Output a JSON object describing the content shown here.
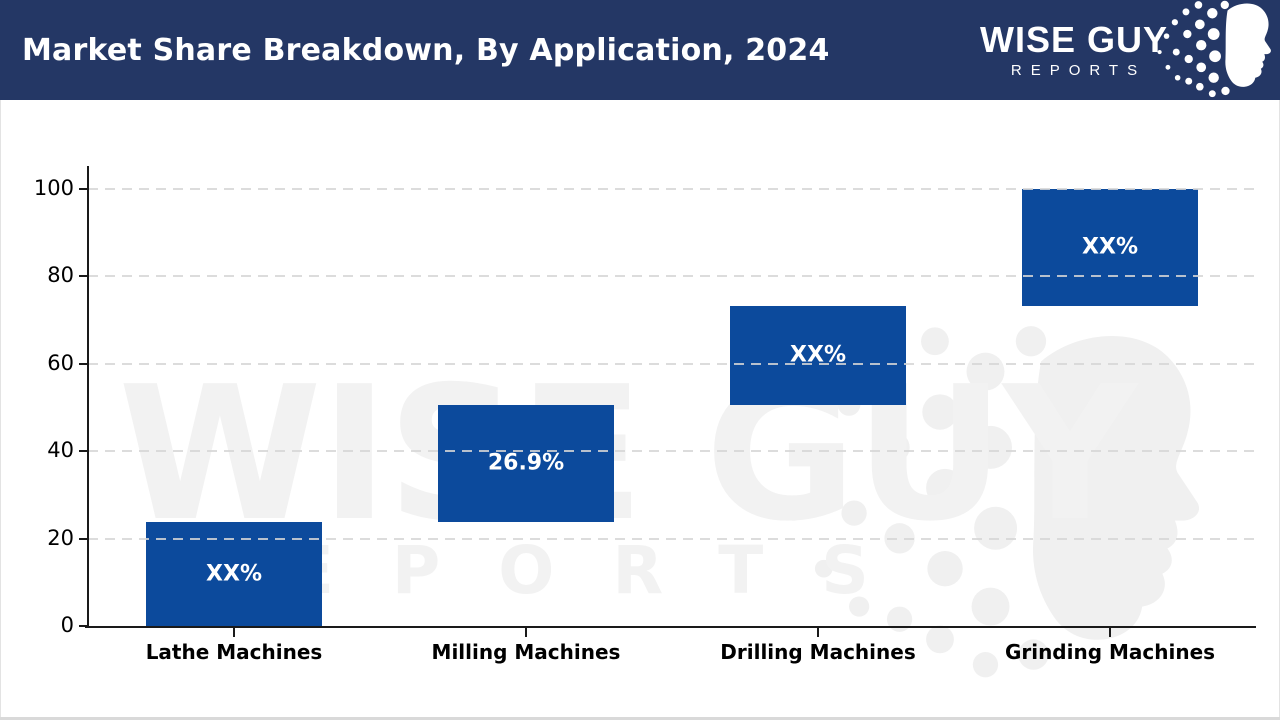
{
  "header": {
    "title": "Market Share Breakdown, By Application, 2024",
    "brand": {
      "line1": "WISE GUY",
      "line2": "REPORTS"
    }
  },
  "watermark": {
    "line1": "WISE GUY",
    "line2": "REPORTS"
  },
  "colors": {
    "header_bg": "#243765",
    "bar": "#0c4a9c",
    "bar_label": "#ffffff",
    "grid": "#d6d6d6",
    "axis": "#1a1a1a",
    "watermark": "#f2f2f2"
  },
  "chart_data": {
    "type": "bar",
    "subtype": "waterfall",
    "title": "",
    "xlabel": "",
    "ylabel": "",
    "categories": [
      "Lathe Machines",
      "Milling Machines",
      "Drilling Machines",
      "Grinding Machines"
    ],
    "segments": [
      {
        "category": "Lathe Machines",
        "start": 0,
        "end": 23.7,
        "value": null,
        "label": "XX%"
      },
      {
        "category": "Milling Machines",
        "start": 23.7,
        "end": 50.6,
        "value": 26.9,
        "label": "26.9%"
      },
      {
        "category": "Drilling Machines",
        "start": 50.6,
        "end": 73.2,
        "value": null,
        "label": "XX%"
      },
      {
        "category": "Grinding Machines",
        "start": 73.2,
        "end": 100.0,
        "value": null,
        "label": "XX%"
      }
    ],
    "yticks": [
      0,
      20,
      40,
      60,
      80,
      100
    ],
    "ylim": [
      0,
      105
    ],
    "grid": "horizontal-dashed",
    "legend": "none"
  }
}
